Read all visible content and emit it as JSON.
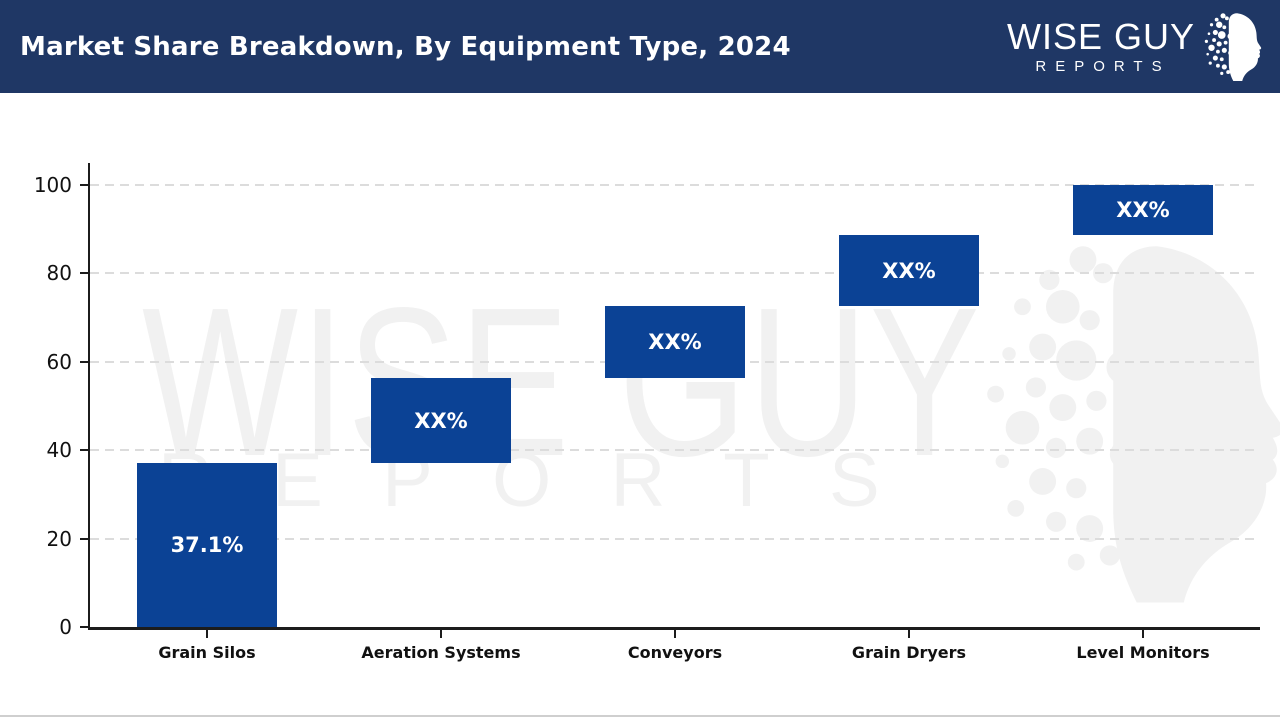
{
  "header": {
    "title": "Market Share Breakdown, By Equipment Type, 2024",
    "logo": {
      "line1": "WISE GUY",
      "line2": "REPORTS"
    }
  },
  "watermark": {
    "line1": "WISE GUY",
    "line2": "REPORTS"
  },
  "chart_data": {
    "type": "bar",
    "variant": "waterfall",
    "title": "Market Share Breakdown, By Equipment Type, 2024",
    "categories": [
      "Grain Silos",
      "Aeration Systems",
      "Conveyors",
      "Grain Dryers",
      "Level Monitors"
    ],
    "bars": [
      {
        "category": "Grain Silos",
        "start": 0,
        "end": 37.1,
        "label": "37.1%"
      },
      {
        "category": "Aeration Systems",
        "start": 37.1,
        "end": 56.3,
        "label": "XX%"
      },
      {
        "category": "Conveyors",
        "start": 56.3,
        "end": 72.7,
        "label": "XX%"
      },
      {
        "category": "Grain Dryers",
        "start": 72.7,
        "end": 88.6,
        "label": "XX%"
      },
      {
        "category": "Level Monitors",
        "start": 88.6,
        "end": 100,
        "label": "XX%"
      }
    ],
    "ylim": [
      0,
      105
    ],
    "yticks": [
      0,
      20,
      40,
      60,
      80,
      100
    ],
    "xlabel": "",
    "ylabel": "",
    "grid": {
      "axis": "y",
      "style": "dashed",
      "color": "#dcdcdc"
    },
    "legend": "none",
    "bar_color": "#0b4295",
    "bar_label_color": "#ffffff"
  },
  "colors": {
    "header_bg": "#1f3765",
    "bar": "#0b4295",
    "axis": "#1c1c1c",
    "watermark": "#f1f1f1"
  }
}
